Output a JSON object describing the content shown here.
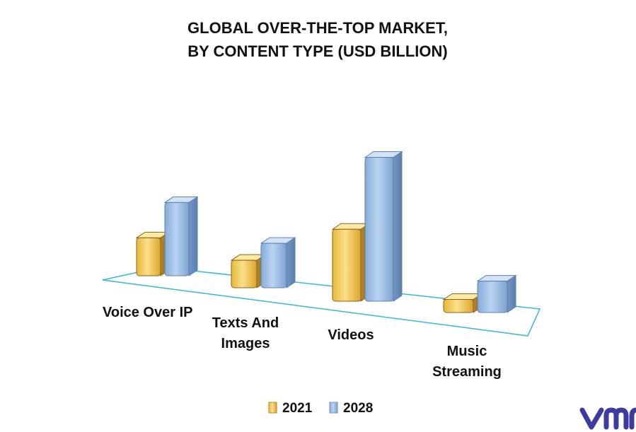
{
  "chart_data": {
    "type": "bar",
    "title": "GLOBAL OVER-THE-TOP MARKET,",
    "subtitle": "BY CONTENT TYPE (USD BILLION)",
    "categories": [
      "Voice Over IP",
      "Texts And Images",
      "Videos",
      "Music Streaming"
    ],
    "category_label_lines": [
      [
        "Voice Over IP"
      ],
      [
        "Texts And",
        "Images"
      ],
      [
        "Videos"
      ],
      [
        "Music",
        "Streaming"
      ]
    ],
    "series": [
      {
        "name": "2021",
        "values": [
          58,
          42,
          110,
          20
        ]
      },
      {
        "name": "2028",
        "values": [
          112,
          68,
          220,
          48
        ]
      }
    ],
    "ylim": [
      0,
      240
    ],
    "grid": false,
    "legend_position": "bottom",
    "colors": {
      "2021": "#f6d774",
      "2028": "#a7c6ec",
      "floor_line": "#36b6dd",
      "logo": "#3d3aa0"
    }
  }
}
